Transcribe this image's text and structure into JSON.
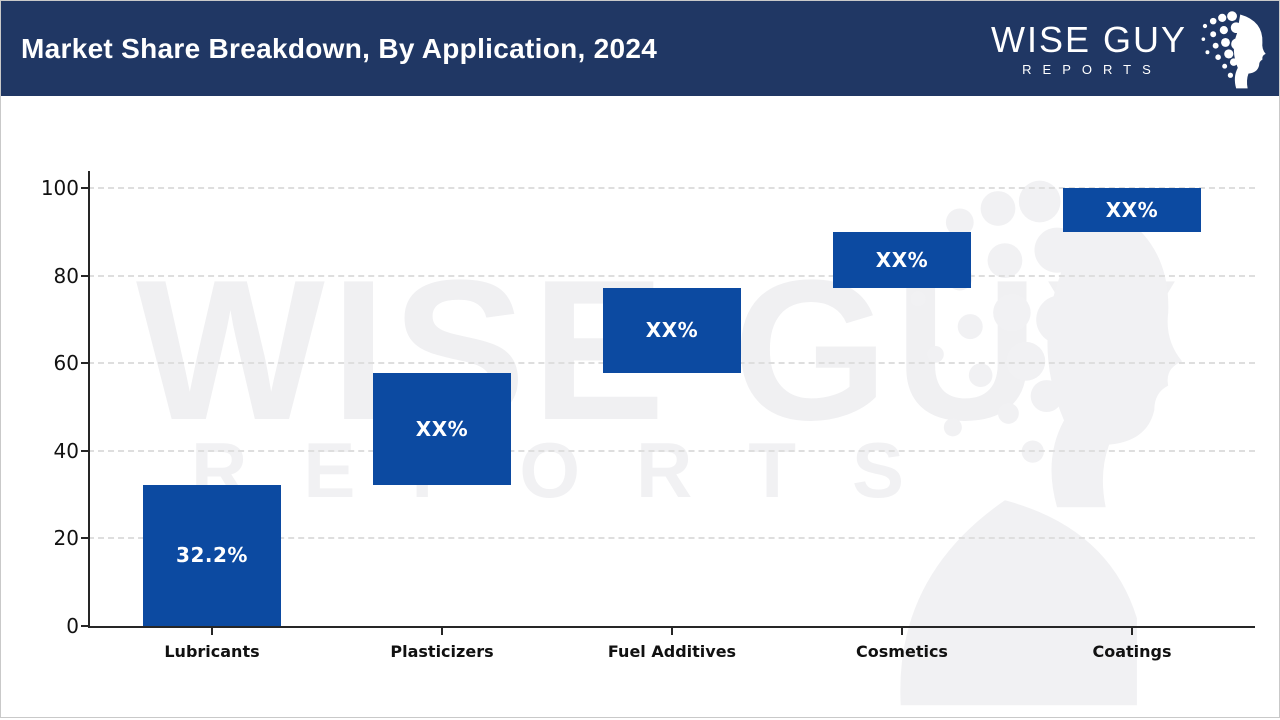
{
  "header": {
    "title": "Market Share Breakdown, By Application, 2024",
    "bg_color": "#203764",
    "logo": {
      "name_top": "WISE GUY",
      "name_bottom": "REPORTS"
    }
  },
  "watermark": {
    "line1": "WISE GUY",
    "line2": "REPORTS"
  },
  "chart_data": {
    "type": "bar",
    "subtype": "waterfall",
    "title": "Market Share Breakdown, By Application, 2024",
    "categories": [
      "Lubricants",
      "Plasticizers",
      "Fuel Additives",
      "Cosmetics",
      "Coatings"
    ],
    "series": [
      {
        "name": "Market share (%)",
        "segment_start": [
          0,
          32.2,
          57.8,
          77.2,
          90
        ],
        "segment_end": [
          32.2,
          57.8,
          77.2,
          90,
          100
        ]
      }
    ],
    "bar_labels": [
      "32.2%",
      "XX%",
      "XX%",
      "XX%",
      "XX%"
    ],
    "xlabel": "",
    "ylabel": "",
    "y_ticks": [
      0,
      20,
      40,
      60,
      80,
      100
    ],
    "ylim": [
      0,
      104
    ],
    "bar_color": "#0c4aa1",
    "grid": "horizontal-dashed",
    "legend": "none"
  }
}
